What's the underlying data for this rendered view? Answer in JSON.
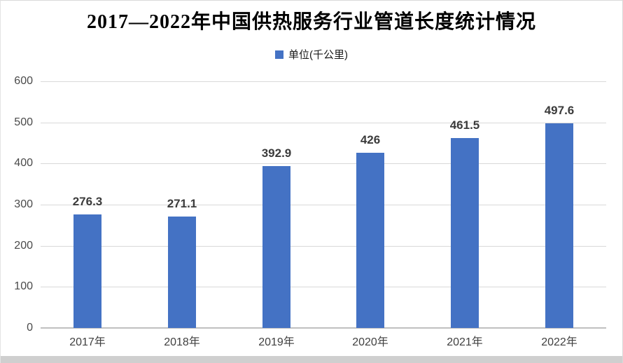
{
  "chart": {
    "title": "2017—2022年中国供热服务行业管道长度统计情况",
    "legend_label": "单位(千公里)"
  },
  "chart_data": {
    "type": "bar",
    "title": "2017—2022年中国供热服务行业管道长度统计情况",
    "legend_entries": [
      "单位(千公里)"
    ],
    "legend_position": "top",
    "categories": [
      "2017年",
      "2018年",
      "2019年",
      "2020年",
      "2021年",
      "2022年"
    ],
    "values": [
      276.3,
      271.1,
      392.9,
      426,
      461.5,
      497.6
    ],
    "value_labels": [
      "276.3",
      "271.1",
      "392.9",
      "426",
      "461.5",
      "497.6"
    ],
    "xlabel": "",
    "ylabel": "",
    "ylim": [
      0,
      600
    ],
    "yticks": [
      0,
      100,
      200,
      300,
      400,
      500,
      600
    ],
    "grid": true
  },
  "colors": {
    "bar": "#4472C4",
    "gridline": "#d9d9d9",
    "baseline": "#c0c0c0",
    "tick_label": "#4a4a4a",
    "value_label": "#3b3b3b",
    "frame_border": "#d9d9d9",
    "bottom_strip": "#cfcfcf"
  }
}
